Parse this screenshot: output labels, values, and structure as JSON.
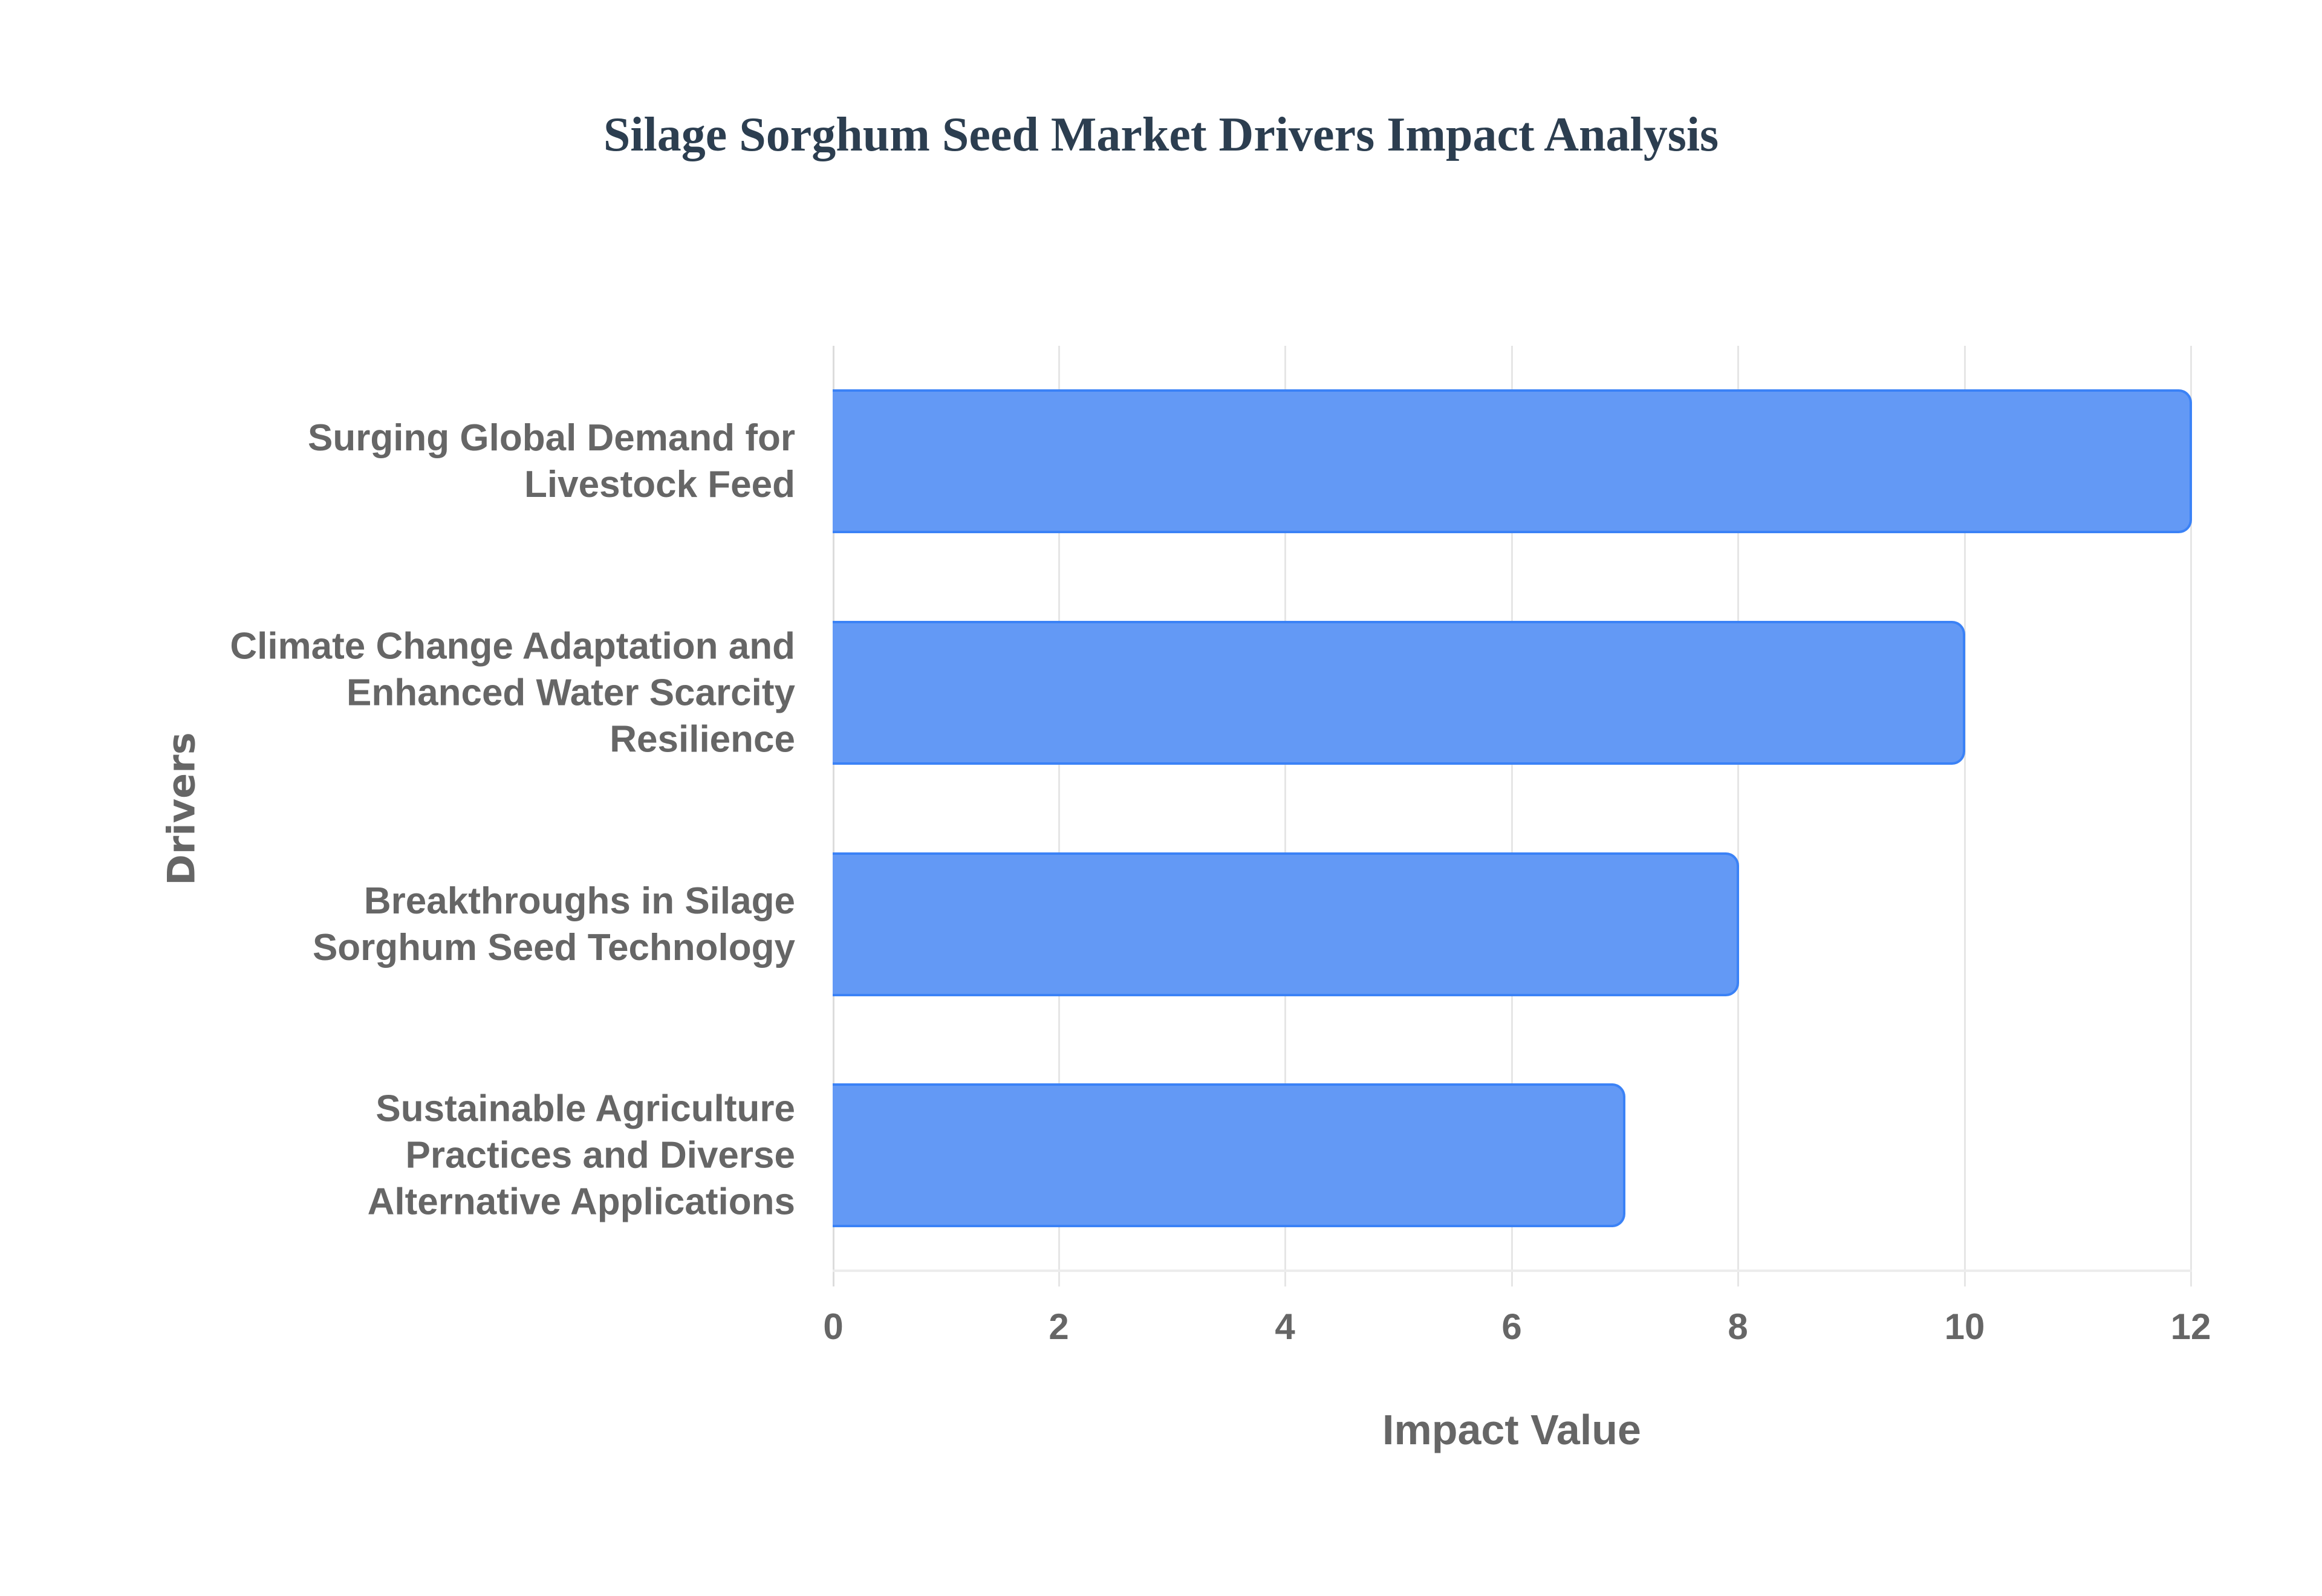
{
  "chart_data": {
    "type": "bar",
    "orientation": "horizontal",
    "title": "Silage Sorghum Seed Market Drivers Impact Analysis",
    "xlabel": "Impact Value",
    "ylabel": "Drivers",
    "xlim": [
      0,
      12
    ],
    "x_ticks": [
      "0",
      "2",
      "4",
      "6",
      "8",
      "10",
      "12"
    ],
    "grid": true,
    "legend": null,
    "categories": [
      [
        "Surging Global Demand for",
        "Livestock Feed"
      ],
      [
        "Climate Change Adaptation and",
        "Enhanced Water Scarcity",
        "Resilience"
      ],
      [
        "Breakthroughs in Silage",
        "Sorghum Seed Technology"
      ],
      [
        "Sustainable Agriculture",
        "Practices and Diverse",
        "Alternative Applications"
      ]
    ],
    "values": [
      12,
      10,
      8,
      7
    ],
    "colors": {
      "bar_fill": "#6399f5",
      "bar_border": "#3b82f6",
      "title": "#2c3e50",
      "text": "#666666",
      "grid": "#e6e6e6"
    }
  },
  "title": "Silage Sorghum Seed Market Drivers Impact Analysis",
  "axes": {
    "x_title": "Impact Value",
    "y_title": "Drivers",
    "ticks": [
      "0",
      "2",
      "4",
      "6",
      "8",
      "10",
      "12"
    ]
  },
  "bars": [
    {
      "lines": [
        "Surging Global Demand for",
        "Livestock Feed"
      ],
      "value": 12
    },
    {
      "lines": [
        "Climate Change Adaptation and",
        "Enhanced Water Scarcity",
        "Resilience"
      ],
      "value": 10
    },
    {
      "lines": [
        "Breakthroughs in Silage",
        "Sorghum Seed Technology"
      ],
      "value": 8
    },
    {
      "lines": [
        "Sustainable Agriculture",
        "Practices and Diverse",
        "Alternative Applications"
      ],
      "value": 7
    }
  ]
}
